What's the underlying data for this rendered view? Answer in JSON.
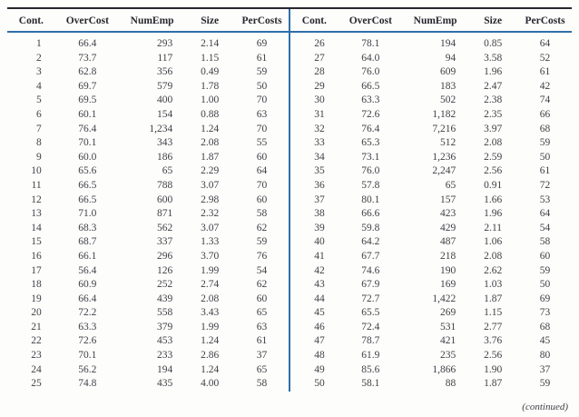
{
  "table": {
    "columns": [
      "Cont.",
      "OverCost",
      "NumEmp",
      "Size",
      "PerCosts"
    ],
    "left_rows": [
      [
        "1",
        "66.4",
        "293",
        "2.14",
        "69"
      ],
      [
        "2",
        "73.7",
        "117",
        "1.15",
        "61"
      ],
      [
        "3",
        "62.8",
        "356",
        "0.49",
        "59"
      ],
      [
        "4",
        "69.7",
        "579",
        "1.78",
        "50"
      ],
      [
        "5",
        "69.5",
        "400",
        "1.00",
        "70"
      ],
      [
        "6",
        "60.1",
        "154",
        "0.88",
        "63"
      ],
      [
        "7",
        "76.4",
        "1,234",
        "1.24",
        "70"
      ],
      [
        "8",
        "70.1",
        "343",
        "2.08",
        "55"
      ],
      [
        "9",
        "60.0",
        "186",
        "1.87",
        "60"
      ],
      [
        "10",
        "65.6",
        "65",
        "2.29",
        "64"
      ],
      [
        "11",
        "66.5",
        "788",
        "3.07",
        "70"
      ],
      [
        "12",
        "66.5",
        "600",
        "2.98",
        "60"
      ],
      [
        "13",
        "71.0",
        "871",
        "2.32",
        "58"
      ],
      [
        "14",
        "68.3",
        "562",
        "3.07",
        "62"
      ],
      [
        "15",
        "68.7",
        "337",
        "1.33",
        "59"
      ],
      [
        "16",
        "66.1",
        "296",
        "3.70",
        "76"
      ],
      [
        "17",
        "56.4",
        "126",
        "1.99",
        "54"
      ],
      [
        "18",
        "60.9",
        "252",
        "2.74",
        "62"
      ],
      [
        "19",
        "66.4",
        "439",
        "2.08",
        "60"
      ],
      [
        "20",
        "72.2",
        "558",
        "3.43",
        "65"
      ],
      [
        "21",
        "63.3",
        "379",
        "1.99",
        "63"
      ],
      [
        "22",
        "72.6",
        "453",
        "1.24",
        "61"
      ],
      [
        "23",
        "70.1",
        "233",
        "2.86",
        "37"
      ],
      [
        "24",
        "56.2",
        "194",
        "1.24",
        "65"
      ],
      [
        "25",
        "74.8",
        "435",
        "4.00",
        "58"
      ]
    ],
    "right_rows": [
      [
        "26",
        "78.1",
        "194",
        "0.85",
        "64"
      ],
      [
        "27",
        "64.0",
        "94",
        "3.58",
        "52"
      ],
      [
        "28",
        "76.0",
        "609",
        "1.96",
        "61"
      ],
      [
        "29",
        "66.5",
        "183",
        "2.47",
        "42"
      ],
      [
        "30",
        "63.3",
        "502",
        "2.38",
        "74"
      ],
      [
        "31",
        "72.6",
        "1,182",
        "2.35",
        "66"
      ],
      [
        "32",
        "76.4",
        "7,216",
        "3.97",
        "68"
      ],
      [
        "33",
        "65.3",
        "512",
        "2.08",
        "59"
      ],
      [
        "34",
        "73.1",
        "1,236",
        "2.59",
        "50"
      ],
      [
        "35",
        "76.0",
        "2,247",
        "2.56",
        "61"
      ],
      [
        "36",
        "57.8",
        "65",
        "0.91",
        "72"
      ],
      [
        "37",
        "80.1",
        "157",
        "1.66",
        "53"
      ],
      [
        "38",
        "66.6",
        "423",
        "1.96",
        "64"
      ],
      [
        "39",
        "59.8",
        "429",
        "2.11",
        "54"
      ],
      [
        "40",
        "64.2",
        "487",
        "1.06",
        "58"
      ],
      [
        "41",
        "67.7",
        "218",
        "2.08",
        "60"
      ],
      [
        "42",
        "74.6",
        "190",
        "2.62",
        "59"
      ],
      [
        "43",
        "67.9",
        "169",
        "1.03",
        "50"
      ],
      [
        "44",
        "72.7",
        "1,422",
        "1.87",
        "69"
      ],
      [
        "45",
        "65.5",
        "269",
        "1.15",
        "73"
      ],
      [
        "46",
        "72.4",
        "531",
        "2.77",
        "68"
      ],
      [
        "47",
        "78.7",
        "421",
        "3.76",
        "45"
      ],
      [
        "48",
        "61.9",
        "235",
        "2.56",
        "80"
      ],
      [
        "49",
        "85.6",
        "1,866",
        "1.90",
        "37"
      ],
      [
        "50",
        "58.1",
        "88",
        "1.87",
        "59"
      ]
    ]
  },
  "footer": {
    "continued_label": "(continued)"
  },
  "colors": {
    "rule_dark": "#26262e",
    "rule_blue": "#2f6fa8",
    "text": "#3f3f48",
    "background": "#fdfdfb"
  }
}
